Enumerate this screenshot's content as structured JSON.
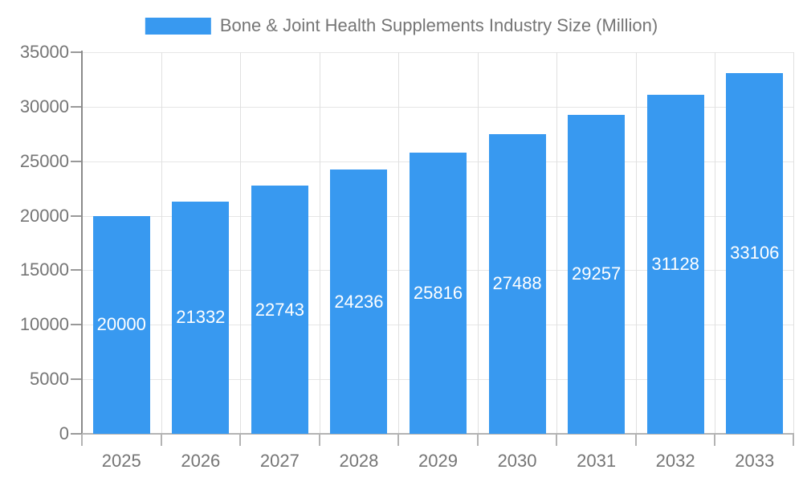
{
  "chart_data": {
    "type": "bar",
    "title": "Bone & Joint Health Supplements Industry Size (Million)",
    "categories": [
      "2025",
      "2026",
      "2027",
      "2028",
      "2029",
      "2030",
      "2031",
      "2032",
      "2033"
    ],
    "values": [
      20000,
      21332,
      22743,
      24236,
      25816,
      27488,
      29257,
      31128,
      33106
    ],
    "series": [
      {
        "name": "Bone & Joint Health Supplements Industry Size (Million)",
        "values": [
          20000,
          21332,
          22743,
          24236,
          25816,
          27488,
          29257,
          31128,
          33106
        ]
      }
    ],
    "xlabel": "",
    "ylabel": "",
    "ylim": [
      0,
      35000
    ],
    "yticks": [
      0,
      5000,
      10000,
      15000,
      20000,
      25000,
      30000,
      35000
    ],
    "grid": "horizontal and vertical category boundaries",
    "legend_position": "top-center",
    "value_labels": "inside bars, white, vertically centered"
  },
  "legend": {
    "label": "Bone & Joint Health Supplements Industry Size (Million)",
    "swatch_color": "#3899f0"
  },
  "colors": {
    "bar": "#3899f0",
    "axis_text": "#757575",
    "grid_horizontal": "#e6e6e6",
    "grid_vertical": "#e0e0e0",
    "y_axis_line": "#8a8a8a",
    "x_axis_line": "#b3b3b3",
    "tick": "#999999",
    "value_label_text": "#ffffff",
    "background": "#ffffff"
  }
}
